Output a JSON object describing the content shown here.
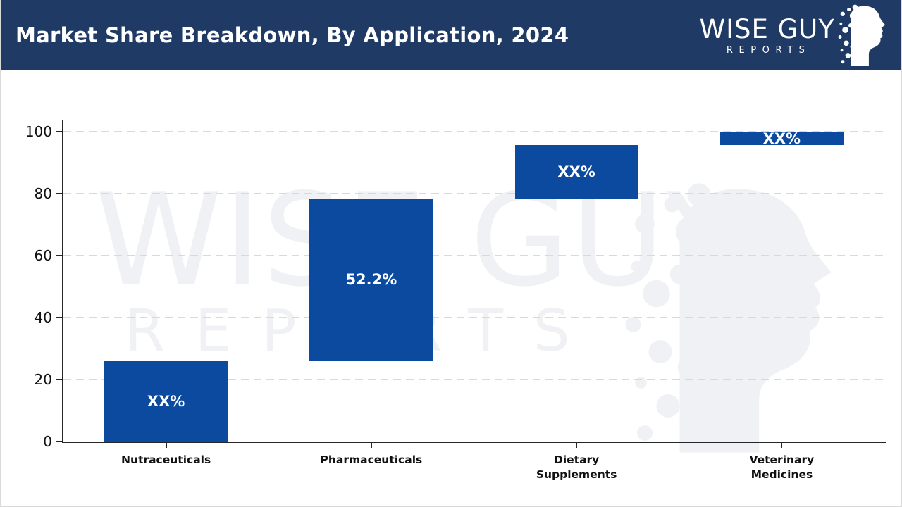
{
  "header": {
    "title": "Market Share Breakdown, By Application, 2024",
    "logo": {
      "line1": "WISE GUY",
      "line2": "REPORTS"
    }
  },
  "watermark": {
    "line1": "WISE GUY",
    "line2": "REPORTS"
  },
  "colors": {
    "header_bg": "#203a66",
    "bar": "#0b4a9e",
    "grid": "#d9d9d9",
    "axis": "#262626",
    "watermark": "#f0f1f4",
    "bar_label_text": "#ffffff"
  },
  "chart_data": {
    "type": "bar",
    "subtype": "waterfall",
    "title": "Market Share Breakdown, By Application, 2024",
    "categories": [
      "Nutraceuticals",
      "Pharmaceuticals",
      "Dietary Supplements",
      "Veterinary Medicines"
    ],
    "tick_labels": [
      "Nutraceuticals",
      "Pharmaceuticals",
      "Dietary\nSupplements",
      "Veterinary\nMedicines"
    ],
    "series": [
      {
        "name": "Market Share",
        "segments": [
          {
            "category": "Nutraceuticals",
            "start": 0,
            "end": 26.1,
            "value": 26.1,
            "label": "XX%"
          },
          {
            "category": "Pharmaceuticals",
            "start": 26.1,
            "end": 78.3,
            "value": 52.2,
            "label": "52.2%"
          },
          {
            "category": "Dietary Supplements",
            "start": 78.3,
            "end": 95.6,
            "value": 17.3,
            "label": "XX%"
          },
          {
            "category": "Veterinary Medicines",
            "start": 95.6,
            "end": 100,
            "value": 4.4,
            "label": "XX%"
          }
        ]
      }
    ],
    "xlabel": "",
    "ylabel": "",
    "ylim": [
      0,
      100
    ],
    "yticks": [
      0,
      20,
      40,
      60,
      80,
      100
    ],
    "grid": "horizontal-dashed",
    "legend": "none"
  }
}
